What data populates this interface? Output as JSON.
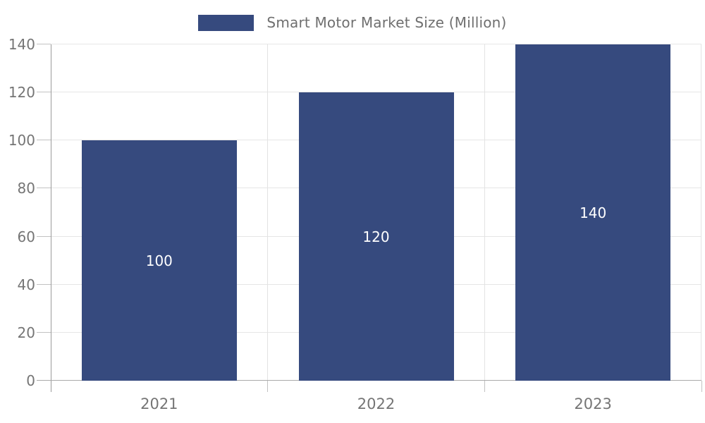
{
  "legend": {
    "label": "Smart Motor Market Size (Million)"
  },
  "chart_data": {
    "type": "bar",
    "title": "Smart Motor Market Size (Million)",
    "categories": [
      "2021",
      "2022",
      "2023"
    ],
    "values": [
      100,
      120,
      140
    ],
    "data_labels": [
      "100",
      "120",
      "140"
    ],
    "series": [
      {
        "name": "Smart Motor Market Size (Million)",
        "values": [
          100,
          120,
          140
        ]
      }
    ],
    "xlabel": "",
    "ylabel": "",
    "ylim": [
      0,
      140
    ],
    "yticks": [
      0,
      20,
      40,
      60,
      80,
      100,
      120,
      140
    ],
    "ytick_step": 20,
    "grid": true,
    "legend_position": "top-center"
  },
  "colors": {
    "bar": "#364a7e",
    "value_text": "#ffffff",
    "grid": "#e6e6e6",
    "boundary_grid": "#e3e3e3",
    "axis_line": "#9b9b9b",
    "baseline": "#a9a9a9",
    "tick": "#c2c2c2",
    "tick_text": "#757575",
    "legend_text": "#6f6f6f",
    "background": "#ffffff"
  }
}
